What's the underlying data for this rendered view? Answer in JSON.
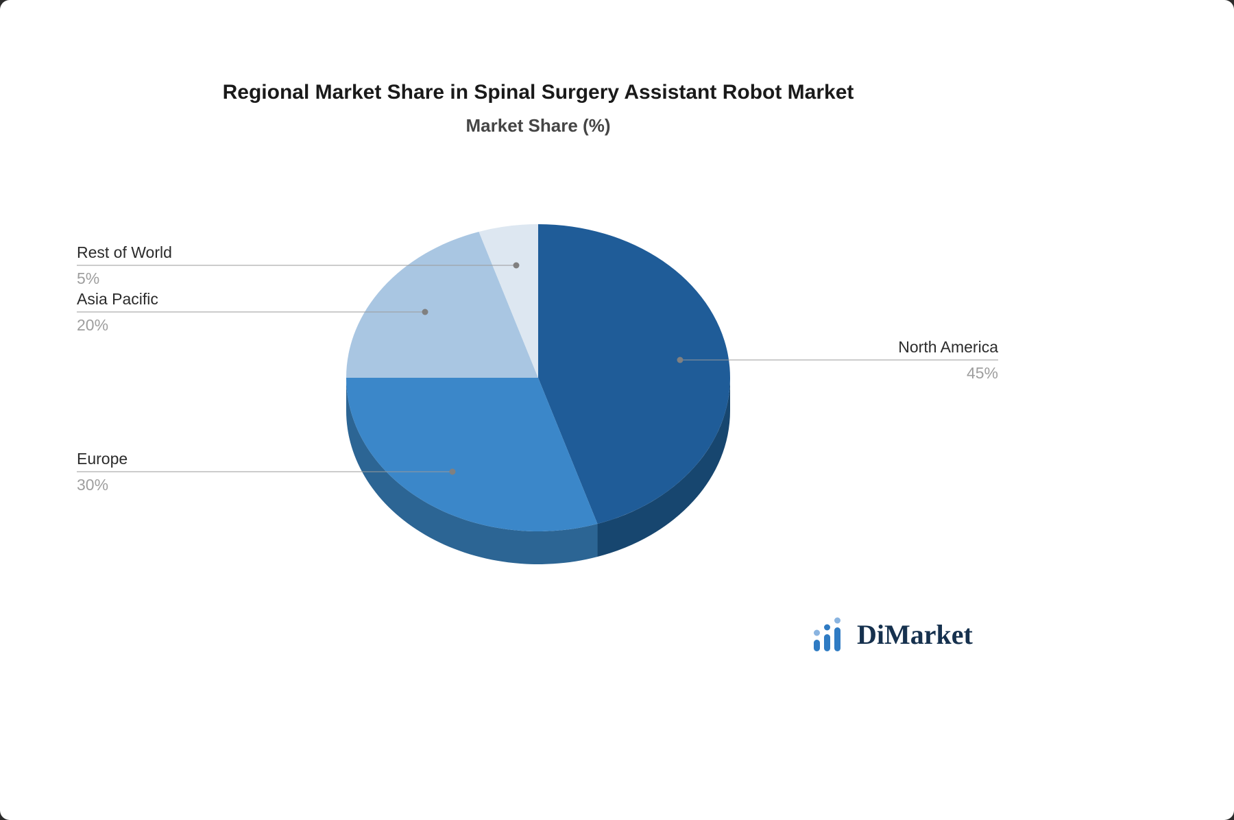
{
  "title": "Regional Market Share in Spinal Surgery Assistant Robot Market",
  "subtitle": "Market Share (%)",
  "logo": {
    "text": "DiMarket"
  },
  "chart_data": {
    "type": "pie",
    "title": "Regional Market Share in Spinal Surgery Assistant Robot Market",
    "subtitle": "Market Share (%)",
    "unit": "%",
    "start_angle_deg": -90,
    "direction": "clockwise",
    "legend_position": "none",
    "label_style": "callout-lines",
    "effect": "3d",
    "slices": [
      {
        "label": "North America",
        "value": 45,
        "display": "45%",
        "color": "#1f5c98",
        "side_color": "#17466f"
      },
      {
        "label": "Europe",
        "value": 30,
        "display": "30%",
        "color": "#3b87c9",
        "side_color": "#2c6594"
      },
      {
        "label": "Asia Pacific",
        "value": 20,
        "display": "20%",
        "color": "#a9c6e2",
        "side_color": "#7d93a8"
      },
      {
        "label": "Rest of World",
        "value": 5,
        "display": "5%",
        "color": "#dde7f1",
        "side_color": "#a3abb4"
      }
    ],
    "callout_line_color": "#9a9a9a",
    "callout_dot_color": "#808080"
  }
}
